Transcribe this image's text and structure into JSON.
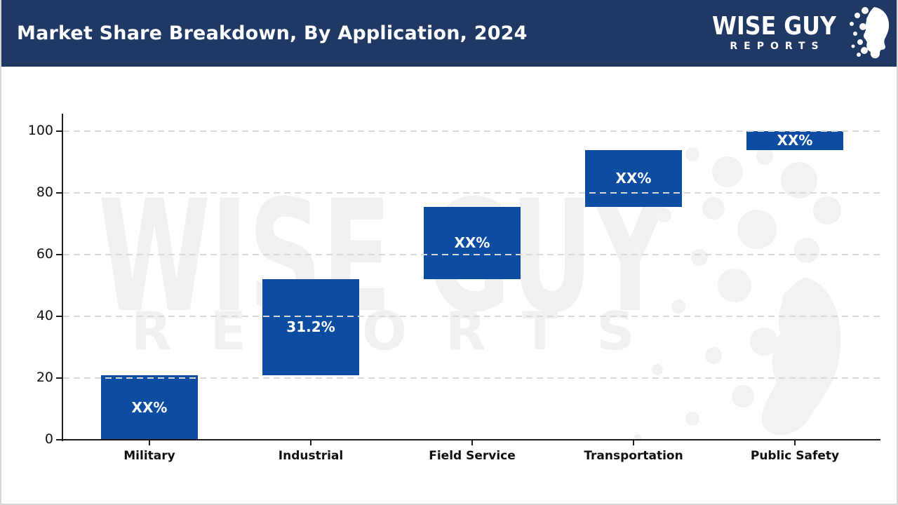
{
  "header": {
    "title": "Market Share Breakdown, By Application, 2024",
    "logo_line1": "WISE GUY",
    "logo_line2": "REPORTS",
    "bg_color": "#1f3864"
  },
  "watermark": {
    "line1": "WISE GUY",
    "line2": "REPORTS"
  },
  "chart_data": {
    "type": "bar",
    "subtype": "floating-waterfall",
    "title": "Market Share Breakdown, By Application, 2024",
    "categories": [
      "Military",
      "Industrial",
      "Field Service",
      "Transportation",
      "Public Safety"
    ],
    "segments": [
      {
        "category": "Military",
        "start": 0,
        "end": 20.9,
        "label": "XX%"
      },
      {
        "category": "Industrial",
        "start": 20.9,
        "end": 52.1,
        "label": "31.2%"
      },
      {
        "category": "Field Service",
        "start": 52.1,
        "end": 75.5,
        "label": "XX%"
      },
      {
        "category": "Transportation",
        "start": 75.5,
        "end": 93.9,
        "label": "XX%"
      },
      {
        "category": "Public Safety",
        "start": 93.9,
        "end": 100,
        "label": "XX%"
      }
    ],
    "visible_value_labels": [
      "XX%",
      "31.2%",
      "XX%",
      "XX%",
      "XX%"
    ],
    "ylim": [
      0,
      100
    ],
    "yticks": [
      0,
      20,
      40,
      60,
      80,
      100
    ],
    "bar_color": "#0c4da2",
    "grid": "horizontal-dashed",
    "legend": "none"
  }
}
